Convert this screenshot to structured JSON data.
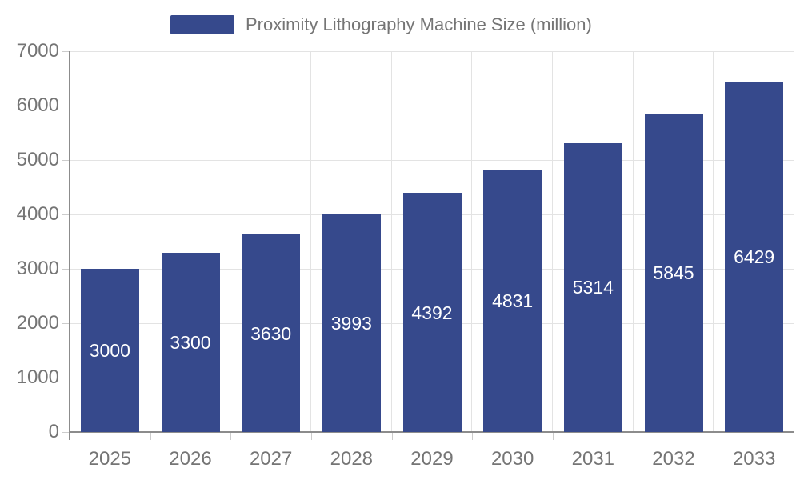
{
  "chart_data": {
    "type": "bar",
    "title": "Proximity Lithography Machine Size (million)",
    "legend_entries": [
      "Proximity Lithography Machine Size (million)"
    ],
    "legend_position": "top",
    "categories": [
      "2025",
      "2026",
      "2027",
      "2028",
      "2029",
      "2030",
      "2031",
      "2032",
      "2033"
    ],
    "values": [
      3000,
      3300,
      3630,
      3993,
      4392,
      4831,
      5314,
      5845,
      6429
    ],
    "xlabel": "",
    "ylabel": "",
    "ylim": [
      0,
      7000
    ],
    "yticks": [
      0,
      1000,
      2000,
      3000,
      4000,
      5000,
      6000,
      7000
    ],
    "grid": true,
    "value_label_position": "inside-center",
    "colors": {
      "bar": "#36498c",
      "grid": "#e3e3e3",
      "axis": "#8c8c8c",
      "tick": "#cccccc",
      "axis_text": "#757575",
      "legend_text": "#757575",
      "value_label": "#ffffff"
    }
  }
}
